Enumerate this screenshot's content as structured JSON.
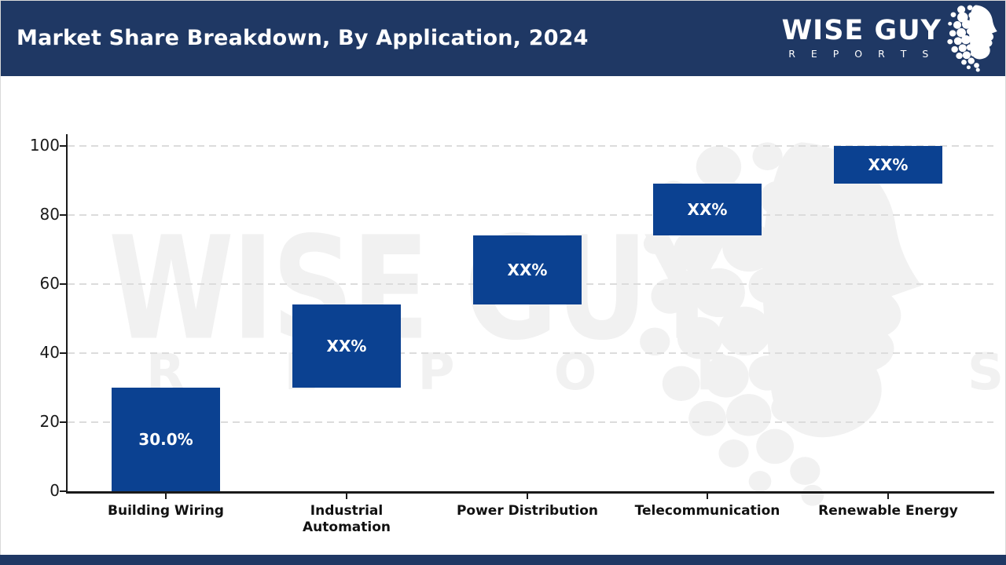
{
  "header": {
    "title": "Market Share Breakdown, By Application, 2024",
    "bg_color": "#1f3864",
    "logo": {
      "name": "WISE GUY",
      "sub": "R E P O R T S"
    }
  },
  "watermark": {
    "name": "WISE GUY",
    "sub": "R E P O R T S"
  },
  "chart_data": {
    "type": "bar",
    "subtype": "waterfall",
    "title": "Market Share Breakdown, By Application, 2024",
    "categories": [
      "Building Wiring",
      "Industrial Automation",
      "Power Distribution",
      "Telecommunication",
      "Renewable Energy"
    ],
    "category_lines": [
      [
        "Building Wiring"
      ],
      [
        "Industrial",
        "Automation"
      ],
      [
        "Power Distribution"
      ],
      [
        "Telecommunication"
      ],
      [
        "Renewable Energy"
      ]
    ],
    "segments": [
      {
        "category": "Building Wiring",
        "start": 0,
        "end": 30,
        "label": "30.0%"
      },
      {
        "category": "Industrial Automation",
        "start": 30,
        "end": 54,
        "label": "XX%"
      },
      {
        "category": "Power Distribution",
        "start": 54,
        "end": 74,
        "label": "XX%"
      },
      {
        "category": "Telecommunication",
        "start": 74,
        "end": 89,
        "label": "XX%"
      },
      {
        "category": "Renewable Energy",
        "start": 89,
        "end": 100,
        "label": "XX%"
      }
    ],
    "yticks": [
      0,
      20,
      40,
      60,
      80,
      100
    ],
    "ylim": [
      0,
      103
    ],
    "grid": "horizontal-dashed",
    "legend": "none",
    "bar_color": "#0b4191",
    "bar_label_color": "#ffffff"
  }
}
